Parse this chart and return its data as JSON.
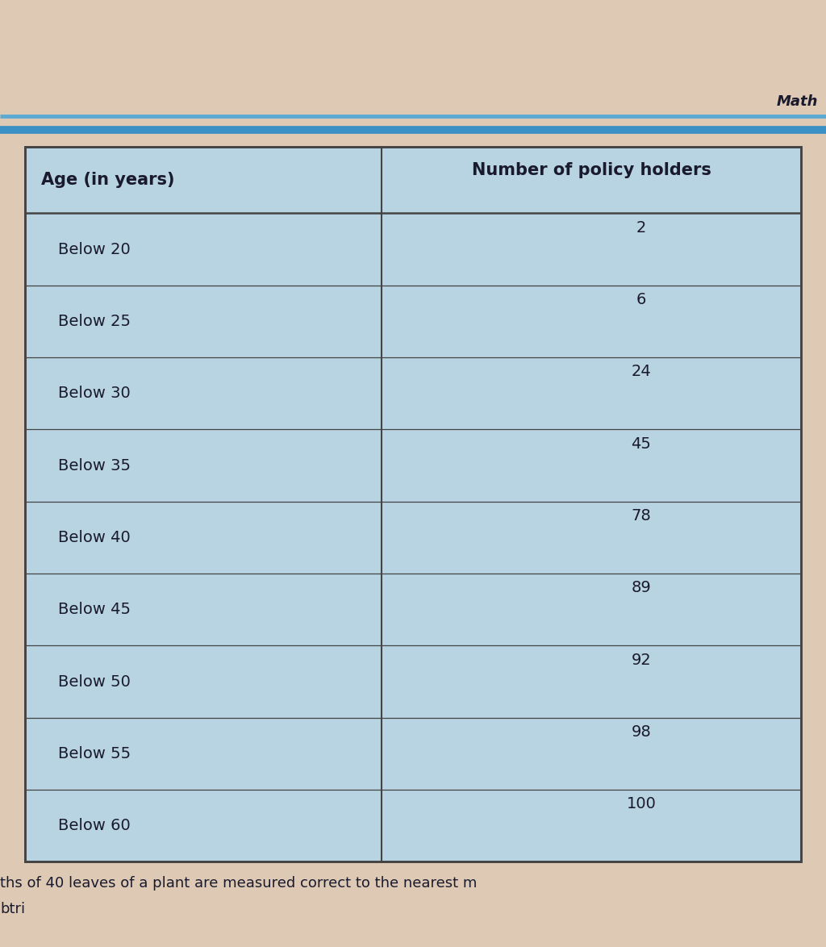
{
  "col1_header": "Age (in years)",
  "col2_header": "Number of policy holders",
  "rows": [
    [
      "Below 20",
      "2"
    ],
    [
      "Below 25",
      "6"
    ],
    [
      "Below 30",
      "24"
    ],
    [
      "Below 35",
      "45"
    ],
    [
      "Below 40",
      "78"
    ],
    [
      "Below 45",
      "89"
    ],
    [
      "Below 50",
      "92"
    ],
    [
      "Below 55",
      "98"
    ],
    [
      "Below 60",
      "100"
    ]
  ],
  "table_bg": "#b8d4e2",
  "line_color": "#444444",
  "text_color": "#1a1a2e",
  "top_stripe_color1": "#3a8fc4",
  "top_stripe_color2": "#5aaad4",
  "page_bg": "#ddc9b4",
  "footer_text": "ths of 40 leaves of a plant are measured correct to the nearest m",
  "footer_text2": "btri",
  "corner_label": "Math",
  "fig_width": 10.24,
  "fig_height": 11.74,
  "dpi": 100
}
